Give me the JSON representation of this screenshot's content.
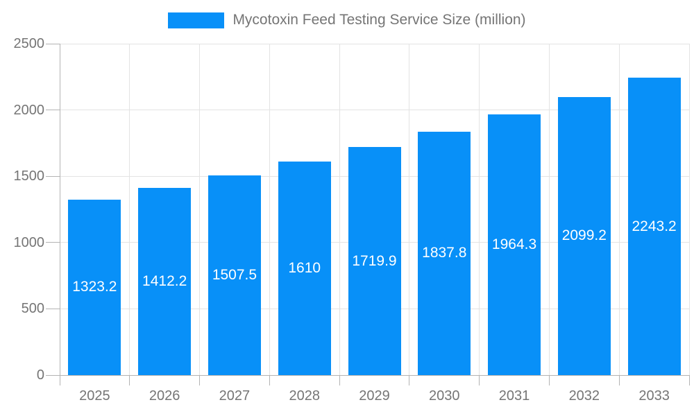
{
  "chart_data": {
    "type": "bar",
    "title": "Mycotoxin Feed Testing Service Size (million)",
    "series_name": "Mycotoxin Feed Testing Service Size (million)",
    "categories": [
      "2025",
      "2026",
      "2027",
      "2028",
      "2029",
      "2030",
      "2031",
      "2032",
      "2033"
    ],
    "values": [
      1323.2,
      1412.2,
      1507.5,
      1610,
      1719.9,
      1837.8,
      1964.3,
      2099.2,
      2243.2
    ],
    "value_labels": [
      "1323.2",
      "1412.2",
      "1507.5",
      "1610",
      "1719.9",
      "1837.8",
      "1964.3",
      "2099.2",
      "2243.2"
    ],
    "ylim": [
      0,
      2500
    ],
    "ytick_interval": 500,
    "ytick_labels": [
      "0",
      "500",
      "1000",
      "1500",
      "2000",
      "2500"
    ],
    "grid": true,
    "legend_position": "top",
    "colors": {
      "bar": "#0890f8",
      "value_label": "#ffffff",
      "axis": "#b3b3b3",
      "gridline": "#e3e3e3",
      "text": "#757575",
      "background": "#ffffff"
    }
  }
}
